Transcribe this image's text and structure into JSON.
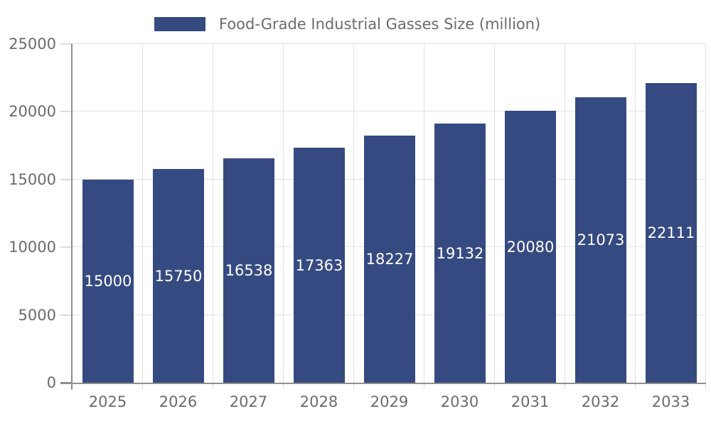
{
  "legend": {
    "label": "Food-Grade Industrial Gasses Size (million)"
  },
  "chart_data": {
    "type": "bar",
    "title": "Food-Grade Industrial Gasses Size (million)",
    "categories": [
      "2025",
      "2026",
      "2027",
      "2028",
      "2029",
      "2030",
      "2031",
      "2032",
      "2033"
    ],
    "series": [
      {
        "name": "Food-Grade Industrial Gasses Size (million)",
        "values": [
          15000,
          15750,
          16538,
          17363,
          18227,
          19132,
          20080,
          21073,
          22111
        ]
      }
    ],
    "bar_value_labels_visible": true,
    "xlabel": "",
    "ylabel": "",
    "ylim": [
      0,
      25000
    ],
    "yticks": [
      0,
      5000,
      10000,
      15000,
      20000,
      25000
    ],
    "grid": true,
    "legend_position": "top",
    "colors": {
      "bar": "#364a82",
      "bar_label": "#ffffff",
      "axis_text": "#6b6b6b",
      "legend_text": "#6b6b6b",
      "grid_line": "#e2e2e2",
      "outer_tick": "#dcdcdc",
      "axis_line": "#8f8f8f",
      "background": "#ffffff"
    }
  }
}
